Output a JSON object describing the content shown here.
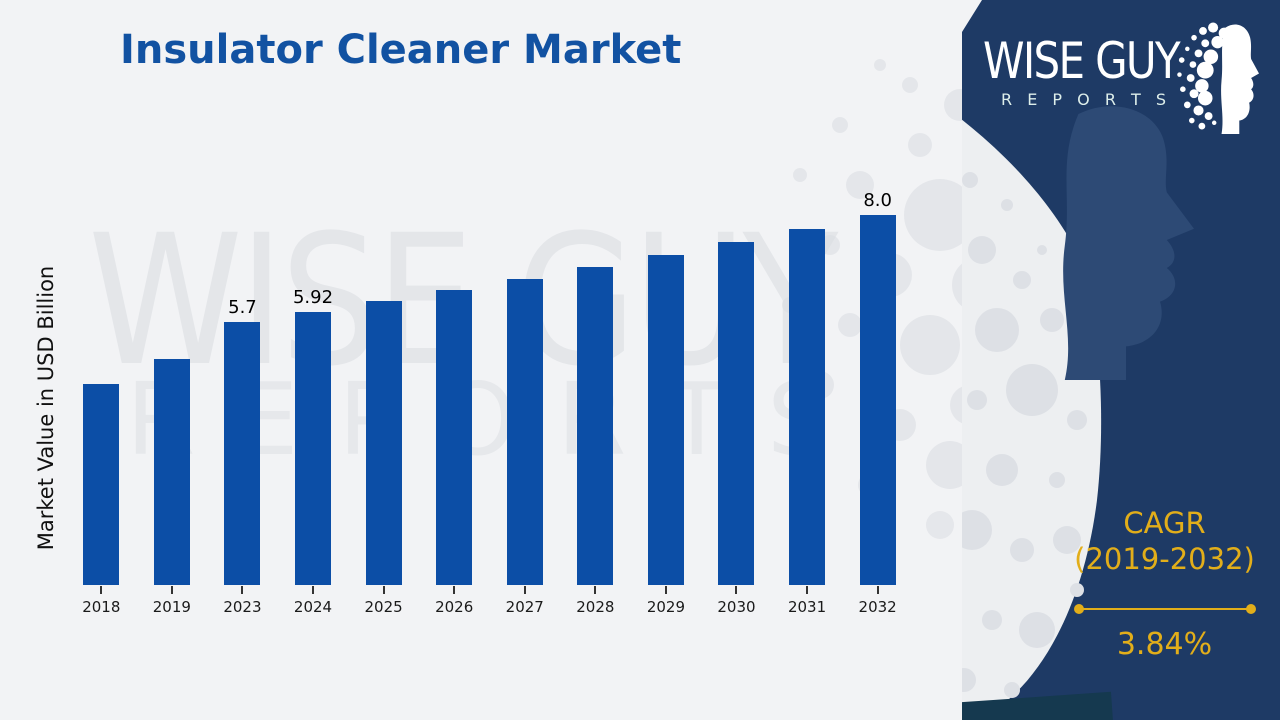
{
  "title": "Insulator Cleaner Market",
  "chart_data": {
    "type": "bar",
    "title": "Insulator Cleaner Market",
    "categories": [
      "2018",
      "2019",
      "2023",
      "2024",
      "2025",
      "2026",
      "2027",
      "2028",
      "2029",
      "2030",
      "2031",
      "2032"
    ],
    "values": [
      4.35,
      4.9,
      5.7,
      5.92,
      6.15,
      6.38,
      6.63,
      6.88,
      7.15,
      7.42,
      7.7,
      8.0
    ],
    "labeled_points": {
      "2023": "5.7",
      "2024": "5.92",
      "2032": "8.0"
    },
    "xlabel": "",
    "ylabel": "Market Value in USD Billion",
    "ylim": [
      0,
      8.7
    ],
    "grid": false,
    "legend": null,
    "bar_color": "#0c4ea6"
  },
  "watermark": {
    "line1": "WISE GUY",
    "line2": "R E P O R T S"
  },
  "brand_panel": {
    "logo_line1": "WISE GUY",
    "logo_line2": "R E P O R T S",
    "cagr_label": "CAGR",
    "cagr_period": "(2019-2032)",
    "cagr_value": "3.84%"
  },
  "colors": {
    "background": "#f2f3f5",
    "bar": "#0c4ea6",
    "title_text": "#1252a2",
    "panel_navy": "#1e3a65",
    "panel_face": "#2d4a75",
    "gold": "#e2ae1a",
    "watermark_gray": "#d9dce1"
  }
}
